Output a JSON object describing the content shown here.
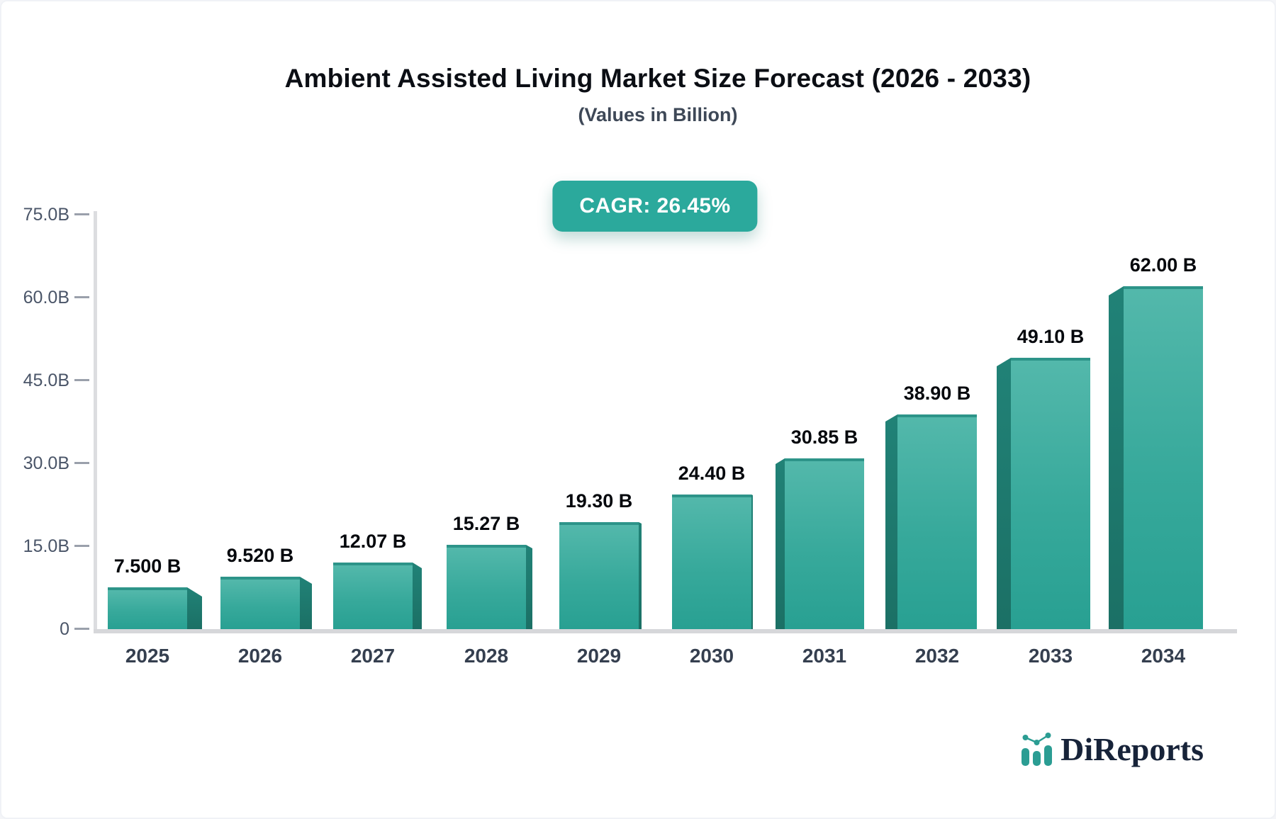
{
  "header": {
    "title": "Ambient Assisted Living Market Size Forecast (2026 - 2033)",
    "subtitle": "(Values in Billion)",
    "cagr_label": "CAGR: 26.45%"
  },
  "chart_data": {
    "type": "bar",
    "title": "Ambient Assisted Living Market Size Forecast (2026 - 2033)",
    "subtitle": "(Values in Billion)",
    "cagr": "26.45%",
    "unit": "Billion",
    "categories": [
      "2025",
      "2026",
      "2027",
      "2028",
      "2029",
      "2030",
      "2031",
      "2032",
      "2033",
      "2034"
    ],
    "values": [
      7.5,
      9.52,
      12.07,
      15.27,
      19.3,
      24.4,
      30.85,
      38.9,
      49.1,
      62.0
    ],
    "value_labels": [
      "7.500 B",
      "9.520 B",
      "12.07 B",
      "15.27 B",
      "19.30 B",
      "24.40 B",
      "30.85 B",
      "38.90 B",
      "49.10 B",
      "62.00 B"
    ],
    "y_ticks": {
      "values": [
        0,
        15,
        30,
        45,
        60,
        75
      ],
      "labels": [
        "0",
        "15.0B",
        "30.0B",
        "45.0B",
        "60.0B",
        "75.0B"
      ]
    },
    "ylim": [
      0,
      75
    ],
    "grid": false,
    "legend": false,
    "colors": {
      "bar_front_top": "#53b8ab",
      "bar_front_bottom": "#28a092",
      "bar_side": "#1f7d72",
      "bar_top_edge": "#2d9489",
      "badge_background": "#2ba99c",
      "badge_text": "#ffffff",
      "axis_line": "#dcdde0",
      "baseline": "#d6d7da",
      "tick_text": "#4a5568",
      "x_label_text": "#353f4f",
      "value_label_text": "#05080d"
    }
  },
  "footer": {
    "logo_text": "DiReports",
    "logo_text_color": "#172339",
    "logo_icon_color": "#2b9d93"
  }
}
